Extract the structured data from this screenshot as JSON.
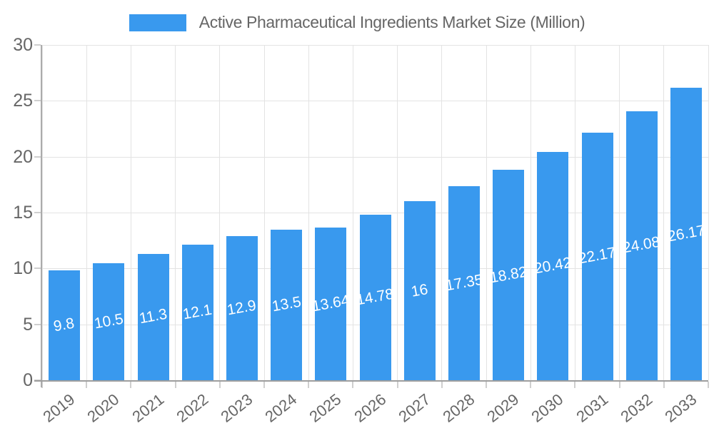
{
  "legend": {
    "label": "Active Pharmaceutical Ingredients Market Size (Million)"
  },
  "chart_data": {
    "type": "bar",
    "title": "Active Pharmaceutical Ingredients Market Size (Million)",
    "categories": [
      "2019",
      "2020",
      "2021",
      "2022",
      "2023",
      "2024",
      "2025",
      "2026",
      "2027",
      "2028",
      "2029",
      "2030",
      "2031",
      "2032",
      "2033"
    ],
    "values": [
      9.8,
      10.5,
      11.3,
      12.1,
      12.9,
      13.5,
      13.64,
      14.78,
      16,
      17.35,
      18.82,
      20.42,
      22.17,
      24.08,
      26.17
    ],
    "value_labels": [
      "9.8",
      "10.5",
      "11.3",
      "12.1",
      "12.9",
      "13.5",
      "13.64",
      "14.78",
      "16",
      "17.35",
      "18.82",
      "20.42",
      "22.17",
      "24.08",
      "26.17"
    ],
    "xlabel": "",
    "ylabel": "",
    "ylim": [
      0,
      30
    ],
    "yticks": [
      0,
      5,
      10,
      15,
      20,
      25,
      30
    ],
    "grid": true,
    "legend_position": "top",
    "colors": {
      "bar": "#3999EE",
      "bar_label": "#FFFFFF",
      "axis_text": "#666666",
      "gridline": "#E3E3E3",
      "axis_line": "#9E9E9E",
      "tick_mark": "#CFCFCF"
    }
  }
}
